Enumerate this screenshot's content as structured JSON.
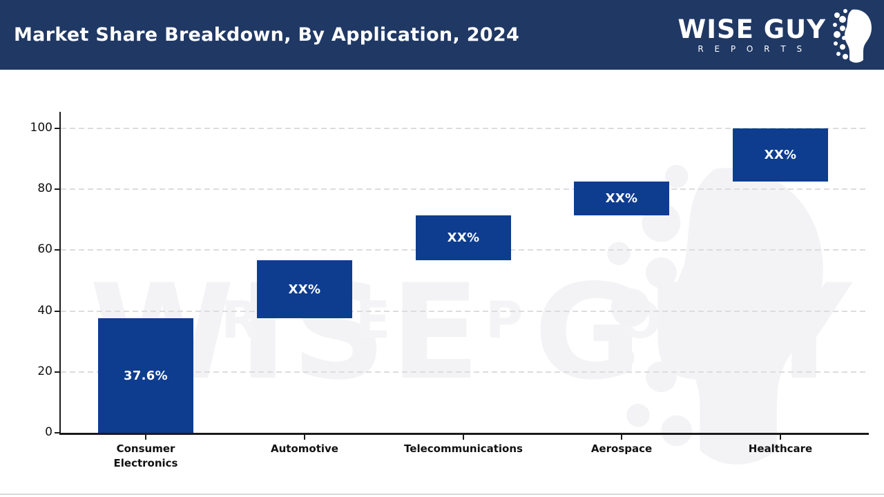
{
  "header": {
    "title": "Market Share Breakdown, By Application, 2024",
    "brand": {
      "name": "WISE GUY",
      "sub": "R E P O R T S"
    },
    "bg_color": "#203864"
  },
  "watermark": {
    "line1": "WISE GUY",
    "line2": "R E P O R T S"
  },
  "chart_data": {
    "type": "bar",
    "subtype": "waterfall",
    "title": "Market Share Breakdown, By Application, 2024",
    "categories": [
      "Consumer Electronics",
      "Automotive",
      "Telecommunications",
      "Aerospace",
      "Healthcare"
    ],
    "series": [
      {
        "name": "Market Share",
        "segments": [
          {
            "category": "Consumer Electronics",
            "start": 0,
            "end": 37.6,
            "label": "37.6%"
          },
          {
            "category": "Automotive",
            "start": 37.6,
            "end": 56.6,
            "label": "XX%"
          },
          {
            "category": "Telecommunications",
            "start": 56.6,
            "end": 71.4,
            "label": "XX%"
          },
          {
            "category": "Aerospace",
            "start": 71.4,
            "end": 82.5,
            "label": "XX%"
          },
          {
            "category": "Healthcare",
            "start": 82.5,
            "end": 100,
            "label": "XX%"
          }
        ]
      }
    ],
    "xlabel": "",
    "ylabel": "",
    "ylim": [
      0,
      100
    ],
    "yticks": [
      0,
      20,
      40,
      60,
      80,
      100
    ],
    "grid": "dashed-horizontal",
    "legend": "none",
    "bar_color": "#0e3d8f"
  }
}
